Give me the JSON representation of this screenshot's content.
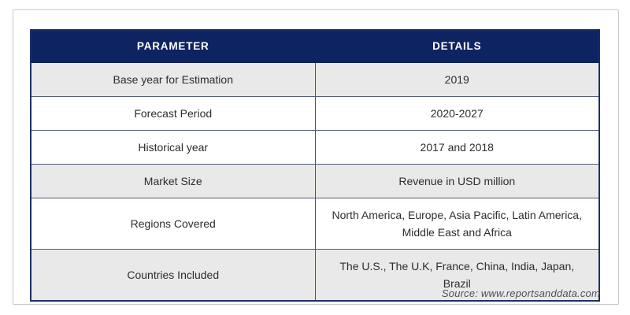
{
  "table": {
    "columns": [
      {
        "label": "PARAMETER"
      },
      {
        "label": "DETAILS"
      }
    ],
    "rows": [
      {
        "parameter": "Base year for Estimation",
        "details": "2019",
        "shaded": true
      },
      {
        "parameter": "Forecast Period",
        "details": "2020-2027",
        "shaded": false
      },
      {
        "parameter": "Historical year",
        "details": "2017 and 2018",
        "shaded": false
      },
      {
        "parameter": "Market Size",
        "details": "Revenue in USD million",
        "shaded": true
      },
      {
        "parameter": "Regions Covered",
        "details": "North America, Europe, Asia Pacific, Latin America, Middle East and Africa",
        "shaded": false
      },
      {
        "parameter": "Countries Included",
        "details": "The U.S., The  U.K, France, China, India, Japan, Brazil",
        "shaded": true
      }
    ]
  },
  "source": {
    "label": "Source: www.reportsanddata.com"
  },
  "colors": {
    "header_bg": "#0e2361",
    "header_text": "#ffffff",
    "shaded_row_bg": "#e9e9e9",
    "plain_row_bg": "#ffffff",
    "table_border": "#1d2f66",
    "inner_border": "#505c7c",
    "column_divider": "#3e5390",
    "body_text": "#2d2d2d",
    "source_text": "#4f4f4f",
    "frame_border": "#c7c7c7"
  }
}
